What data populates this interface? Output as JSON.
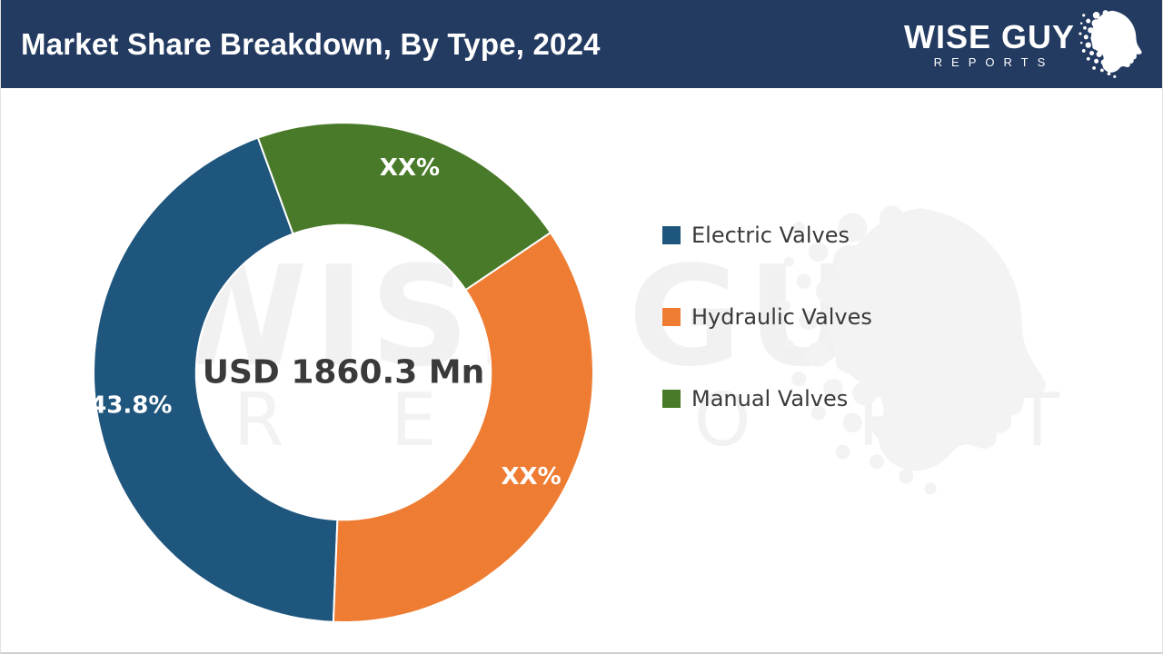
{
  "header": {
    "title": "Market Share Breakdown, By Type, 2024",
    "logo_line1": "WISE GUY",
    "logo_line2": "REPORTS"
  },
  "watermark": {
    "line1": "WISE GUY",
    "line2": "R E P O R T S"
  },
  "chart_data": {
    "type": "donut",
    "title": "Market Share Breakdown, By Type, 2024",
    "center_label": "USD 1860.3 Mn",
    "start_angle_deg": 110,
    "direction": "counterclockwise",
    "hole_ratio": 0.59,
    "legend_position": "right",
    "series": [
      {
        "name": "Electric Valves",
        "share_pct": 43.8,
        "label": "43.8%",
        "color": "#1F567D"
      },
      {
        "name": "Hydraulic Valves",
        "share_pct": 35.1,
        "label": "XX%",
        "color": "#EE7D33"
      },
      {
        "name": "Manual Valves",
        "share_pct": 21.1,
        "label": "XX%",
        "color": "#497A29"
      }
    ],
    "colors": {
      "slice_label_text": "#FFFFFF",
      "center_text": "#3A3A3A",
      "separator": "#FFFFFF"
    }
  }
}
